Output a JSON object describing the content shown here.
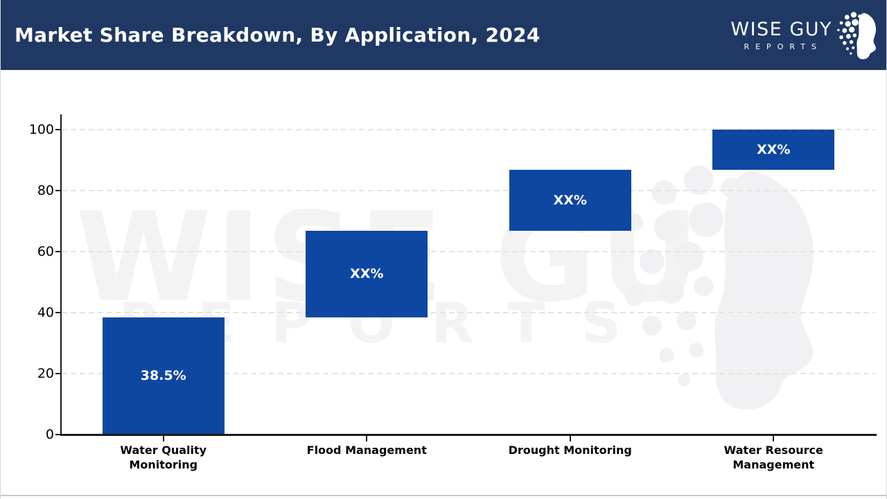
{
  "page": {
    "background": "#ffffff",
    "border_color": "#c9c9c9"
  },
  "header": {
    "title": "Market Share Breakdown, By Application, 2024",
    "background": "#1f3864",
    "text_color": "#ffffff",
    "logo": {
      "line1": "WISE GUY",
      "line2": "REPORTS",
      "face_icon": "dotted-head-profile"
    }
  },
  "watermark": {
    "line1": "WISE GU",
    "line2": "REPORTS",
    "face_icon": "dotted-head-profile",
    "color": "#f3f3f4"
  },
  "chart_data": {
    "type": "bar",
    "variant": "waterfall",
    "title": "Market Share Breakdown, By Application, 2024",
    "categories": [
      "Water Quality\nMonitoring",
      "Flood Management",
      "Drought Monitoring",
      "Water Resource\nManagement"
    ],
    "segments": [
      {
        "category": "Water Quality Monitoring",
        "start": 0,
        "end": 38.5,
        "label": "38.5%"
      },
      {
        "category": "Flood Management",
        "start": 38.5,
        "end": 66.8,
        "label": "XX%"
      },
      {
        "category": "Drought Monitoring",
        "start": 66.8,
        "end": 86.8,
        "label": "XX%"
      },
      {
        "category": "Water Resource Management",
        "start": 86.8,
        "end": 100,
        "label": "XX%"
      }
    ],
    "yticks": [
      0,
      20,
      40,
      60,
      80,
      100
    ],
    "ylim": [
      0,
      105
    ],
    "xlabel": "",
    "ylabel": "",
    "bar_color": "#0d47a1",
    "bar_label_color": "#ffffff",
    "axis_color": "#1a1a1a",
    "grid": true,
    "grid_style": "dashed",
    "legend": false
  }
}
